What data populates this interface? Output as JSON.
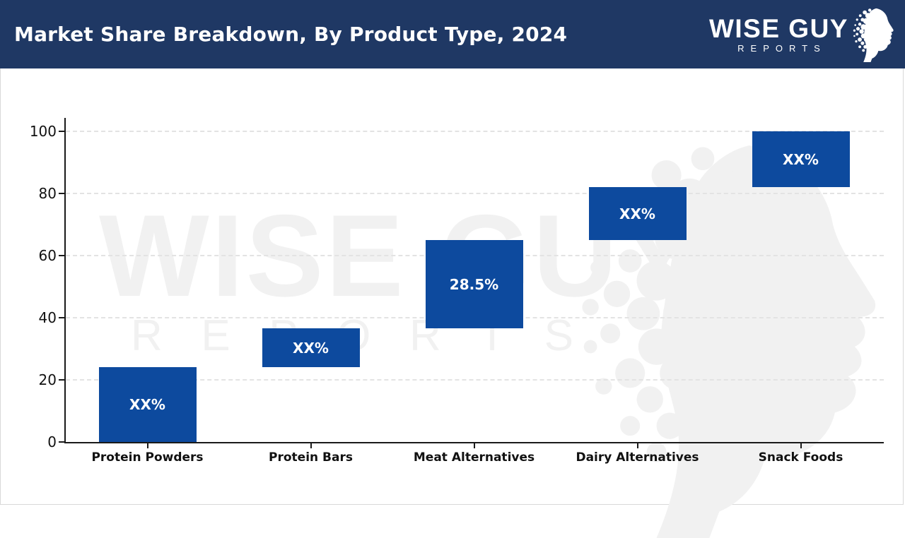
{
  "header": {
    "title": "Market Share Breakdown, By Product Type, 2024",
    "logo": {
      "wordmark": "WISE GUY",
      "subtext": "REPORTS",
      "icon": "dotted-head-profile-icon"
    }
  },
  "watermark": {
    "line1": "WISE GUY",
    "line2": "REPORTS",
    "icon": "dotted-head-profile-icon"
  },
  "colors": {
    "header_background": "#1f3864",
    "title_text": "#ffffff",
    "bar_fill": "#0d4a9e",
    "bar_label_text": "#ffffff",
    "axis_line": "#1a1a1a",
    "gridline": "#e3e3e3",
    "tick_label_text": "#111111",
    "watermark_text": "#f1f1f1",
    "frame_border": "#d9d9d9"
  },
  "chart_data": {
    "type": "bar",
    "subtype": "waterfall-floating-segments",
    "title": "Market Share Breakdown, By Product Type, 2024",
    "xlabel": "",
    "ylabel": "",
    "ylim": [
      0,
      105
    ],
    "yticks": [
      0,
      20,
      40,
      60,
      80,
      100
    ],
    "grid": "horizontal-dashed",
    "legend": "none",
    "categories": [
      "Protein Powders",
      "Protein Bars",
      "Meat Alternatives",
      "Dairy Alternatives",
      "Snack Foods"
    ],
    "segments": [
      {
        "category": "Protein Powders",
        "start": 0,
        "end": 24,
        "value_label": "XX%"
      },
      {
        "category": "Protein Bars",
        "start": 24,
        "end": 36.5,
        "value_label": "XX%"
      },
      {
        "category": "Meat Alternatives",
        "start": 36.5,
        "end": 65,
        "value_label": "28.5%"
      },
      {
        "category": "Dairy Alternatives",
        "start": 65,
        "end": 82,
        "value_label": "XX%"
      },
      {
        "category": "Snack Foods",
        "start": 82,
        "end": 100,
        "value_label": "XX%"
      }
    ]
  }
}
